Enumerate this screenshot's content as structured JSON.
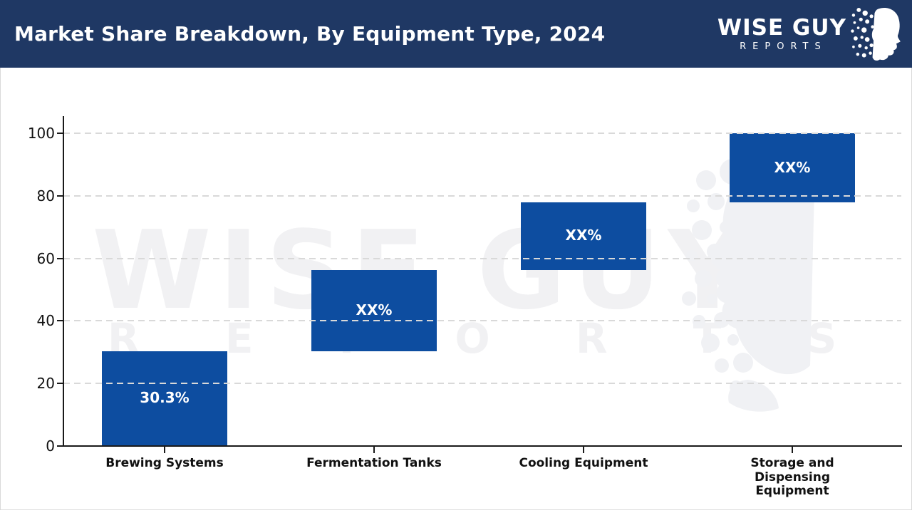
{
  "header": {
    "title": "Market Share Breakdown, By Equipment Type, 2024",
    "bg_color": "#1F3864",
    "logo": {
      "line1": "WISE GUY",
      "line2": "REPORTS"
    }
  },
  "watermark": {
    "line1": "WISE GUY",
    "line2": "R E P O R T S"
  },
  "chart_data": {
    "type": "bar",
    "variant": "waterfall",
    "title": "Market Share Breakdown, By Equipment Type, 2024",
    "xlabel": "",
    "ylabel": "",
    "ylim": [
      0,
      100
    ],
    "yticks": [
      0,
      20,
      40,
      60,
      80,
      100
    ],
    "grid": "horizontal-dashed",
    "legend": "none",
    "bar_color": "#0d4da0",
    "bar_label_color": "#ffffff",
    "categories": [
      "Brewing Systems",
      "Fermentation Tanks",
      "Cooling Equipment",
      "Storage and Dispensing Equipment"
    ],
    "categories_display": [
      [
        "Brewing Systems"
      ],
      [
        "Fermentation Tanks"
      ],
      [
        "Cooling Equipment"
      ],
      [
        "Storage and",
        "Dispensing",
        "Equipment"
      ]
    ],
    "bars": [
      {
        "category": "Brewing Systems",
        "start": 0,
        "end": 30.3,
        "label": "30.3%"
      },
      {
        "category": "Fermentation Tanks",
        "start": 30.3,
        "end": 56.3,
        "label": "XX%"
      },
      {
        "category": "Cooling Equipment",
        "start": 56.3,
        "end": 77.9,
        "label": "XX%"
      },
      {
        "category": "Storage and Dispensing Equipment",
        "start": 77.9,
        "end": 100,
        "label": "XX%"
      }
    ]
  }
}
